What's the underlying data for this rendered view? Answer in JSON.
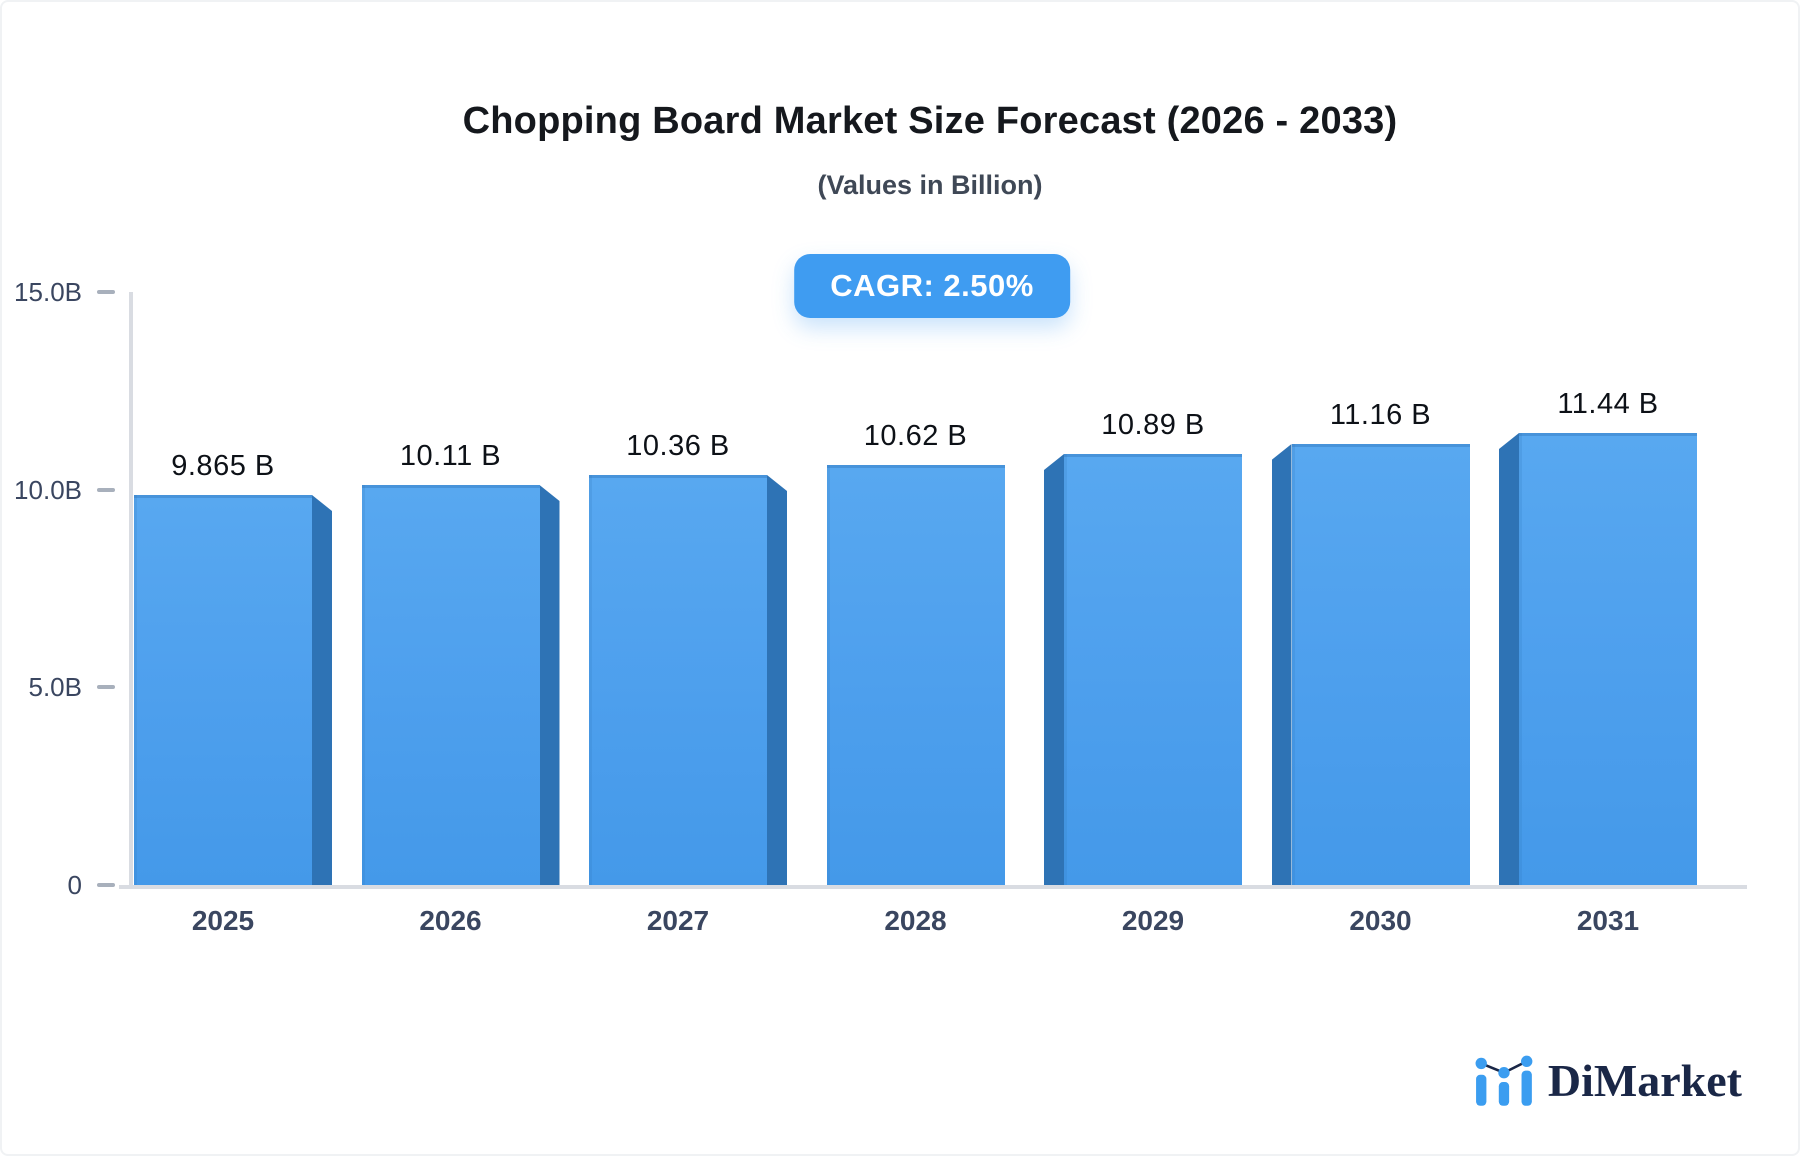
{
  "header": {
    "title": "Chopping Board Market Size Forecast (2026 - 2033)",
    "subtitle": "(Values in Billion)",
    "cagr_badge": "CAGR: 2.50%"
  },
  "chart_data": {
    "type": "bar",
    "title": "Chopping Board Market Size Forecast (2026 - 2033)",
    "subtitle": "(Values in Billion)",
    "categories": [
      "2025",
      "2026",
      "2027",
      "2028",
      "2029",
      "2030",
      "2031"
    ],
    "values": [
      9.865,
      10.11,
      10.36,
      10.62,
      10.89,
      11.16,
      11.44
    ],
    "value_labels": [
      "9.865 B",
      "10.11 B",
      "10.36 B",
      "10.62 B",
      "10.89 B",
      "11.16 B",
      "11.44 B"
    ],
    "xlabel": "",
    "ylabel": "",
    "ylim": [
      0,
      15
    ],
    "yticks": [
      {
        "label": "15.0B",
        "value": 15
      },
      {
        "label": "10.0B",
        "value": 10
      },
      {
        "label": "5.0B",
        "value": 5
      },
      {
        "label": "0",
        "value": 0
      }
    ],
    "grid": false,
    "legend": "none",
    "annotations": [
      "CAGR: 2.50%"
    ],
    "colors": {
      "bar_face": "#4d9fed",
      "bar_side": "#2e73b5",
      "badge": "#3f9cf1",
      "axis_line": "#d9dce2",
      "tick_text": "#3a4660",
      "value_text": "#0d1117"
    }
  },
  "branding": {
    "logo_text": "DiMarket",
    "logo_mark": "mini-bar-line-chart-icon",
    "logo_text_color": "#1a2747",
    "logo_mark_color": "#3b9df0"
  }
}
